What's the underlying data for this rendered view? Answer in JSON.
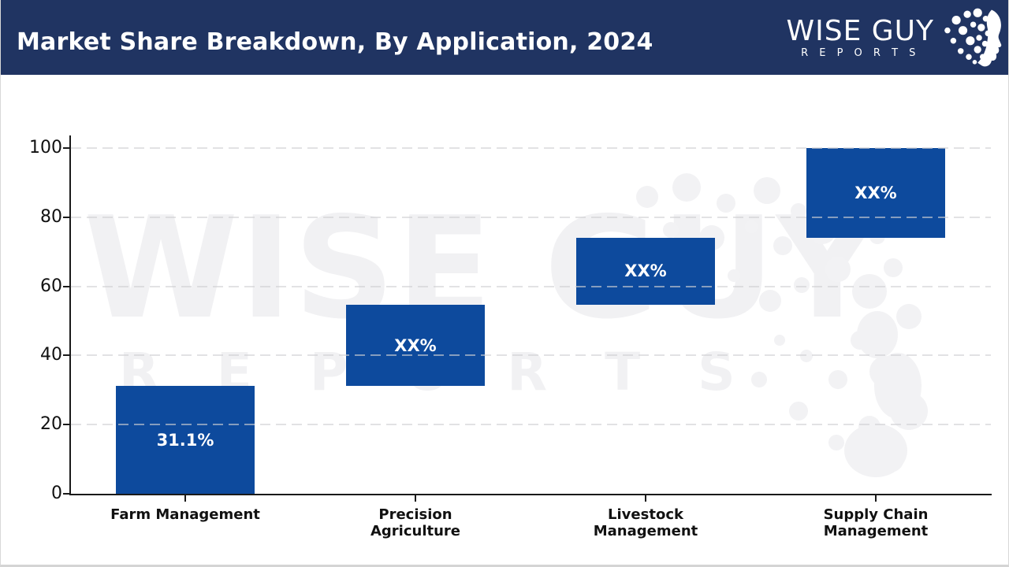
{
  "header": {
    "title": "Market Share Breakdown, By Application, 2024",
    "logo": {
      "wordmark": "WISE GUY",
      "subtitle": "R E P O R T S"
    }
  },
  "watermark": {
    "line1": "WISE GUY",
    "line2": "R E P O R T S"
  },
  "chart_data": {
    "type": "bar",
    "subtype": "waterfall",
    "title": "Market Share Breakdown, By Application, 2024",
    "categories": [
      "Farm Management",
      "Precision\nAgriculture",
      "Livestock\nManagement",
      "Supply Chain\nManagement"
    ],
    "segments": [
      {
        "category": "Farm Management",
        "start": 0,
        "end": 31.1,
        "label": "31.1%"
      },
      {
        "category": "Precision Agriculture",
        "start": 31.1,
        "end": 54.7,
        "label": "XX%"
      },
      {
        "category": "Livestock Management",
        "start": 54.7,
        "end": 74.0,
        "label": "XX%"
      },
      {
        "category": "Supply Chain Management",
        "start": 74.0,
        "end": 100.0,
        "label": "XX%"
      }
    ],
    "y_ticks": [
      0,
      20,
      40,
      60,
      80,
      100
    ],
    "ylim": [
      0,
      103.5
    ],
    "xlabel": "",
    "ylabel": "",
    "legend": "none",
    "grid": "horizontal-dashed",
    "colors": {
      "bar": "#0d4a9d",
      "bar_label": "#ffffff",
      "header_bg": "#203462",
      "axis": "#1a1a1a",
      "grid": "#d9d9d9",
      "watermark": "#f1f1f3"
    }
  }
}
